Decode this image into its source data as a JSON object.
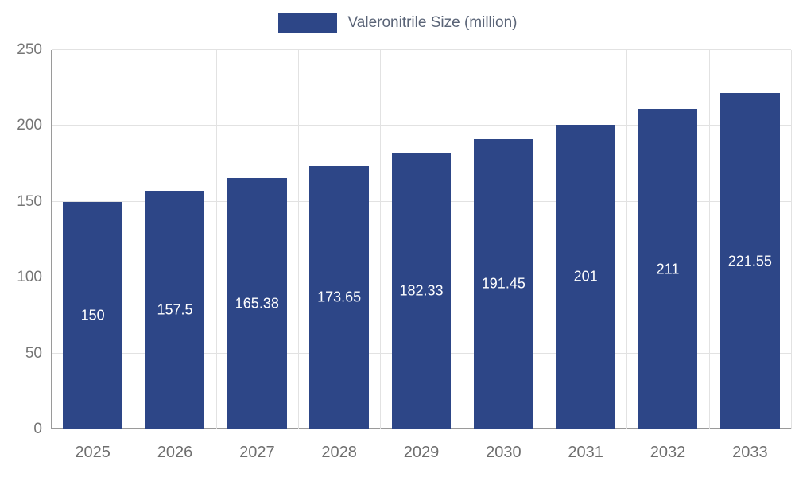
{
  "chart_data": {
    "type": "bar",
    "title": "",
    "legend": "Valeronitrile Size (million)",
    "categories": [
      "2025",
      "2026",
      "2027",
      "2028",
      "2029",
      "2030",
      "2031",
      "2032",
      "2033"
    ],
    "values": [
      150,
      157.5,
      165.38,
      173.65,
      182.33,
      191.45,
      201,
      211,
      221.55
    ],
    "labels": [
      "150",
      "157.5",
      "165.38",
      "173.65",
      "182.33",
      "191.45",
      "201",
      "211",
      "221.55"
    ],
    "xlabel": "",
    "ylabel": "",
    "ylim": [
      0,
      250
    ],
    "yticks": [
      0,
      50,
      100,
      150,
      200,
      250
    ],
    "bar_color": "#2d4687",
    "grid": true,
    "legend_position": "top"
  }
}
